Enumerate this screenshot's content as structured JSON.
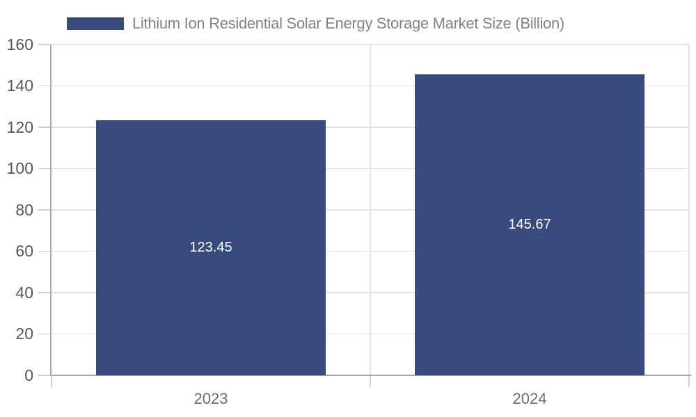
{
  "chart_data": {
    "type": "bar",
    "title": "",
    "series_label": "Lithium Ion Residential Solar Energy Storage Market Size (Billion)",
    "categories": [
      "2023",
      "2024"
    ],
    "values": [
      123.45,
      145.67
    ],
    "value_labels": [
      "123.45",
      "145.67"
    ],
    "xlabel": "",
    "ylabel": "",
    "ylim": [
      0,
      160
    ],
    "yticks": [
      0,
      20,
      40,
      60,
      80,
      100,
      120,
      140,
      160
    ],
    "grid": true,
    "legend_position": "top-left",
    "colors": {
      "bar": "#394A7E",
      "legend_swatch": "#394A7E",
      "legend_text": "#828282",
      "gridline": "#e3e3e3",
      "axis_line": "#a8a8a8",
      "tick": "#cfcfcf",
      "y_tick_label": "#565656",
      "x_tick_label": "#6e6e6e",
      "bar_value_label": "#ffffff",
      "background": "#ffffff"
    }
  }
}
